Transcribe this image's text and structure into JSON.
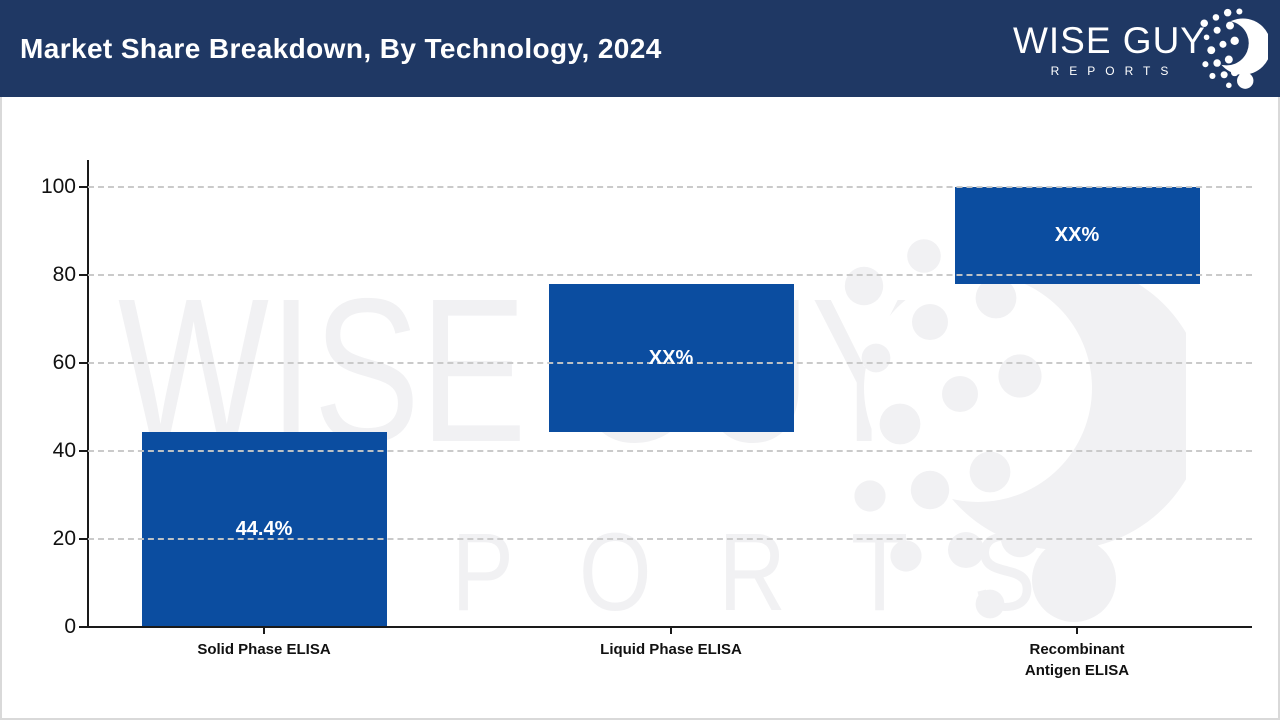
{
  "header": {
    "title": "Market Share Breakdown, By Technology, 2024",
    "logo": {
      "line1": "WISE GUY",
      "line2": "REPORTS"
    }
  },
  "watermark": {
    "line1": "WISE GUY",
    "line2": "R E P O R T S"
  },
  "colors": {
    "header_bg": "#1f3864",
    "bar": "#0b4da0",
    "bar_label": "#ffffff",
    "axis": "#1a1a1a",
    "gridline": "#c7c7c7",
    "watermark": "#f1f1f3",
    "card_border": "#d9d9d9"
  },
  "chart_data": {
    "type": "bar",
    "variant": "floating stacked bars (cumulative waterfall 0 to 100)",
    "title": "Market Share Breakdown, By Technology, 2024",
    "categories": [
      "Solid Phase ELISA",
      "Liquid Phase ELISA",
      "Recombinant Antigen ELISA"
    ],
    "category_lines": [
      [
        "Solid Phase ELISA"
      ],
      [
        "Liquid Phase ELISA"
      ],
      [
        "Recombinant",
        "Antigen ELISA"
      ]
    ],
    "bars": [
      {
        "category": "Solid Phase ELISA",
        "start": 0,
        "end": 44.4,
        "value": 44.4,
        "label": "44.4%"
      },
      {
        "category": "Liquid Phase ELISA",
        "start": 44.4,
        "end": 78,
        "value": 33.6,
        "label": "XX%"
      },
      {
        "category": "Recombinant Antigen ELISA",
        "start": 78,
        "end": 100,
        "value": 22,
        "label": "XX%"
      }
    ],
    "xlabel": "",
    "ylabel": "",
    "y_ticks": [
      0,
      20,
      40,
      60,
      80,
      100
    ],
    "ylim": [
      0,
      105
    ],
    "grid": "horizontal dashed, drawn over bars",
    "legend": "none"
  }
}
